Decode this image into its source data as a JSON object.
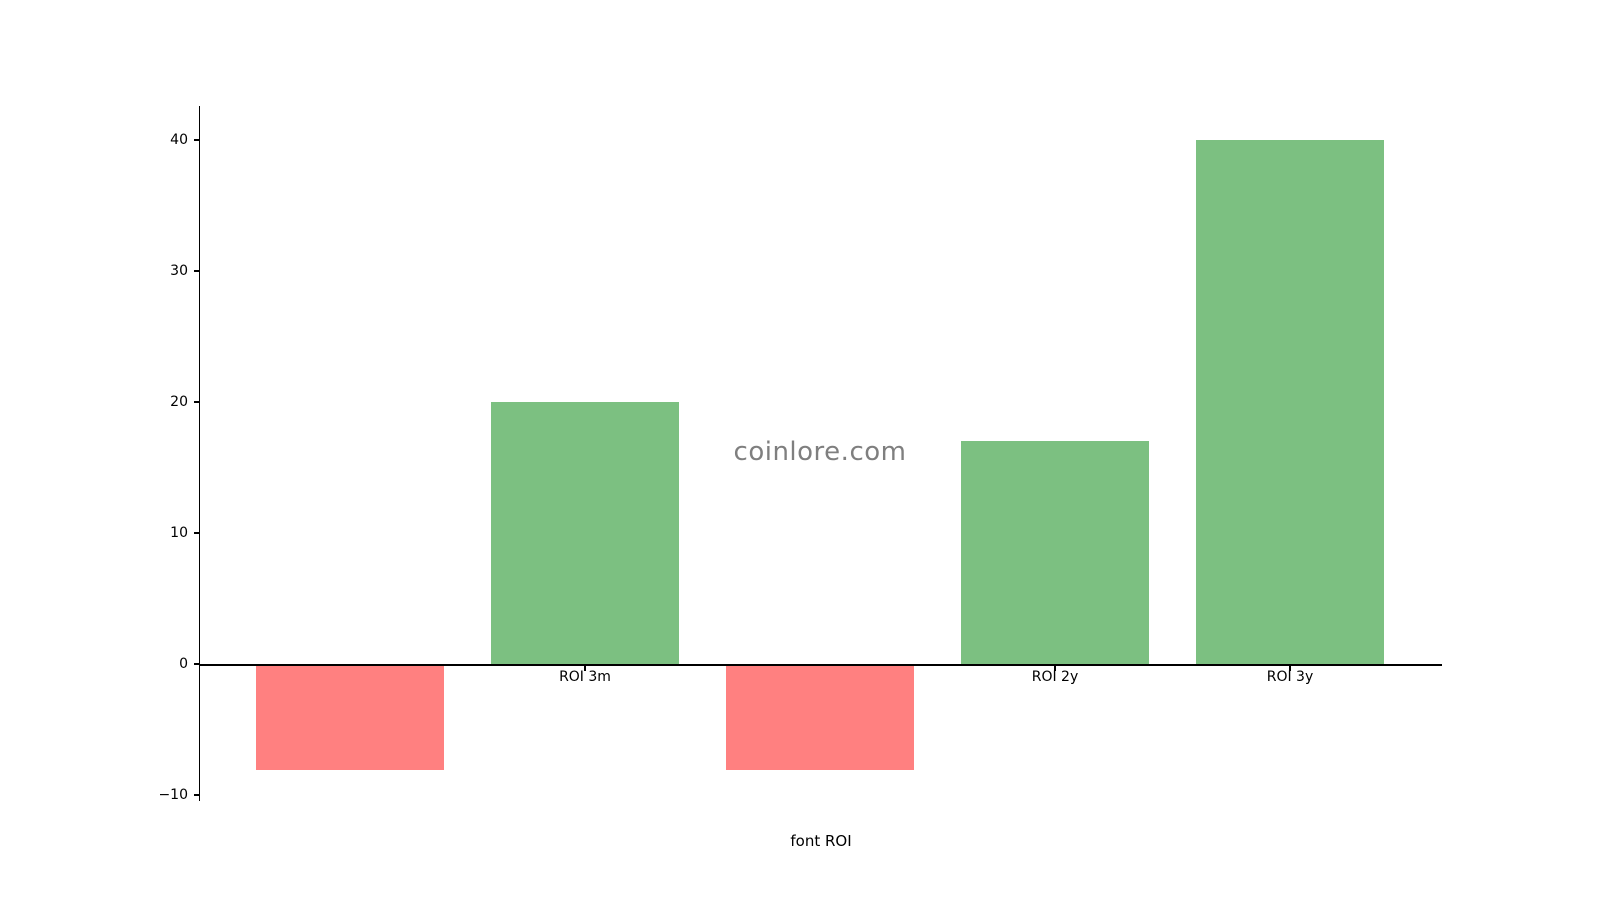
{
  "watermark": {
    "text": "coinlore.com",
    "color": "#7f7f7f"
  },
  "chart_data": {
    "type": "bar",
    "categories": [
      "",
      "ROI 3m",
      "",
      "ROI 2y",
      "ROI 3y"
    ],
    "values": [
      -8,
      20,
      -8,
      17,
      40
    ],
    "series_note": "single series; negative bars red, positive bars green; tick labels of the two negative bars are hidden behind the bars",
    "title": "",
    "xlabel": "font ROI",
    "ylabel": "",
    "ylim": [
      -10,
      42.6
    ],
    "yticks": [
      40,
      30,
      20,
      10,
      0,
      -10
    ],
    "ytick_labels": [
      "40",
      "30",
      "20",
      "10",
      "0",
      "−10"
    ],
    "grid": false,
    "legend": false,
    "colors": {
      "positive": "#7cc081",
      "negative": "#ff8080",
      "axis": "#000000"
    }
  }
}
